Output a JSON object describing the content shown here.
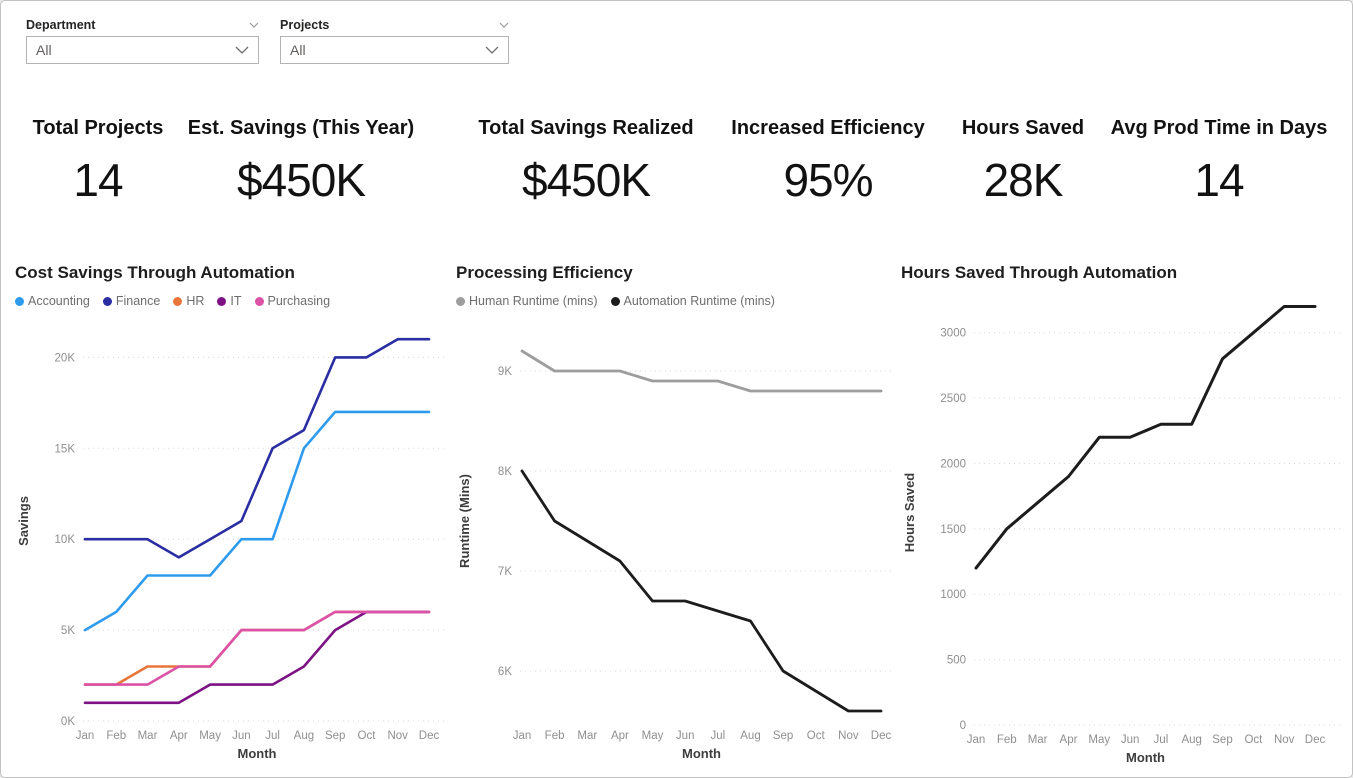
{
  "slicers": [
    {
      "label": "Department",
      "value": "All"
    },
    {
      "label": "Projects",
      "value": "All"
    }
  ],
  "kpis": [
    {
      "label": "Total Projects",
      "value": "14"
    },
    {
      "label": "Est. Savings (This Year)",
      "value": "$450K"
    },
    {
      "label": "Total Savings Realized",
      "value": "$450K"
    },
    {
      "label": "Increased Efficiency",
      "value": "95%"
    },
    {
      "label": "Hours Saved",
      "value": "28K"
    },
    {
      "label": "Avg Prod Time in Days",
      "value": "14"
    }
  ],
  "chart_data": [
    {
      "type": "line",
      "title": "Cost Savings Through Automation",
      "xlabel": "Month",
      "ylabel": "Savings",
      "categories": [
        "Jan",
        "Feb",
        "Mar",
        "Apr",
        "May",
        "Jun",
        "Jul",
        "Aug",
        "Sep",
        "Oct",
        "Nov",
        "Dec"
      ],
      "ylim": [
        0,
        22000
      ],
      "grid": true,
      "legend": true,
      "legend_position": "top",
      "y_ticks": [
        {
          "value": 0,
          "label": "0K"
        },
        {
          "value": 5000,
          "label": "5K"
        },
        {
          "value": 10000,
          "label": "10K"
        },
        {
          "value": 15000,
          "label": "15K"
        },
        {
          "value": 20000,
          "label": "20K"
        }
      ],
      "series": [
        {
          "name": "Accounting",
          "color": "#2E9BEE",
          "values": [
            5000,
            6000,
            8000,
            8000,
            8000,
            10000,
            10000,
            15000,
            17000,
            17000,
            17000,
            17000
          ]
        },
        {
          "name": "Finance",
          "color": "#2A2EA2",
          "values": [
            10000,
            10000,
            10000,
            9000,
            10000,
            11000,
            15000,
            16000,
            20000,
            20000,
            21000,
            21000
          ]
        },
        {
          "name": "HR",
          "color": "#E8763B",
          "values": [
            2000,
            2000,
            3000,
            3000,
            3000,
            5000,
            5000,
            5000,
            6000,
            6000,
            6000,
            6000
          ]
        },
        {
          "name": "IT",
          "color": "#7D1284",
          "values": [
            1000,
            1000,
            1000,
            1000,
            2000,
            2000,
            2000,
            3000,
            5000,
            6000,
            6000,
            6000
          ]
        },
        {
          "name": "Purchasing",
          "color": "#DC52A7",
          "values": [
            2000,
            2000,
            2000,
            3000,
            3000,
            5000,
            5000,
            5000,
            6000,
            6000,
            6000,
            6000
          ]
        }
      ]
    },
    {
      "type": "line",
      "title": "Processing Efficiency",
      "xlabel": "Month",
      "ylabel": "Runtime (Mins)",
      "categories": [
        "Jan",
        "Feb",
        "Mar",
        "Apr",
        "May",
        "Jun",
        "Jul",
        "Aug",
        "Sep",
        "Oct",
        "Nov",
        "Dec"
      ],
      "ylim": [
        5500,
        9500
      ],
      "grid": true,
      "legend": true,
      "legend_position": "top",
      "y_ticks": [
        {
          "value": 6000,
          "label": "6K"
        },
        {
          "value": 7000,
          "label": "7K"
        },
        {
          "value": 8000,
          "label": "8K"
        },
        {
          "value": 9000,
          "label": "9K"
        }
      ],
      "series": [
        {
          "name": "Human Runtime (mins)",
          "color": "#9D9D9D",
          "values": [
            9200,
            9000,
            9000,
            9000,
            8900,
            8900,
            8900,
            8800,
            8800,
            8800,
            8800,
            8800
          ]
        },
        {
          "name": "Automation Runtime (mins)",
          "color": "#1C1C1C",
          "values": [
            8000,
            7500,
            7300,
            7100,
            6700,
            6700,
            6600,
            6500,
            6000,
            5800,
            5600,
            5600
          ]
        }
      ]
    },
    {
      "type": "line",
      "title": "Hours Saved Through Automation",
      "xlabel": "Month",
      "ylabel": "Hours Saved",
      "categories": [
        "Jan",
        "Feb",
        "Mar",
        "Apr",
        "May",
        "Jun",
        "Jul",
        "Aug",
        "Sep",
        "Oct",
        "Nov",
        "Dec"
      ],
      "ylim": [
        0,
        3250
      ],
      "grid": true,
      "legend": false,
      "y_ticks": [
        {
          "value": 0,
          "label": "0"
        },
        {
          "value": 500,
          "label": "500"
        },
        {
          "value": 1000,
          "label": "1000"
        },
        {
          "value": 1500,
          "label": "1500"
        },
        {
          "value": 2000,
          "label": "2000"
        },
        {
          "value": 2500,
          "label": "2500"
        },
        {
          "value": 3000,
          "label": "3000"
        }
      ],
      "series": [
        {
          "name": "Hours Saved",
          "color": "#1C1C1C",
          "values": [
            1200,
            1500,
            1700,
            1900,
            2200,
            2200,
            2300,
            2300,
            2800,
            3000,
            3200,
            3200
          ]
        }
      ]
    }
  ]
}
